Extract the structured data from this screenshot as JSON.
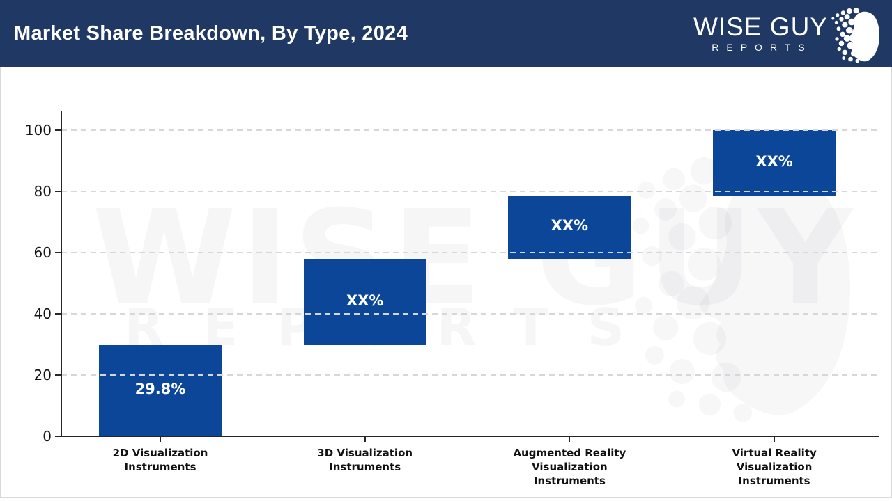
{
  "header": {
    "title": "Market Share Breakdown, By Type, 2024",
    "bg_color": "#203864",
    "logo": {
      "line1": "WISE GUY",
      "line2": "REPORTS"
    }
  },
  "watermark": {
    "line1": "WISE GUY",
    "line2": "REPORTS"
  },
  "chart_data": {
    "type": "bar",
    "subtype": "waterfall",
    "title": "Market Share Breakdown, By Type, 2024",
    "categories": [
      "2D Visualization Instruments",
      "3D Visualization Instruments",
      "Augmented Reality Visualization Instruments",
      "Virtual Reality Visualization Instruments"
    ],
    "category_label_lines": [
      [
        "2D Visualization",
        "Instruments"
      ],
      [
        "3D Visualization",
        "Instruments"
      ],
      [
        "Augmented Reality",
        "Visualization",
        "Instruments"
      ],
      [
        "Virtual Reality",
        "Visualization",
        "Instruments"
      ]
    ],
    "segments": [
      {
        "category": "2D Visualization Instruments",
        "start": 0,
        "end": 29.8,
        "label": "29.8%"
      },
      {
        "category": "3D Visualization Instruments",
        "start": 29.8,
        "end": 58.0,
        "label": "XX%"
      },
      {
        "category": "Augmented Reality Visualization Instruments",
        "start": 58.0,
        "end": 78.6,
        "label": "XX%"
      },
      {
        "category": "Virtual Reality Visualization Instruments",
        "start": 78.6,
        "end": 100.0,
        "label": "XX%"
      }
    ],
    "y_ticks": [
      0,
      20,
      40,
      60,
      80,
      100
    ],
    "y_tick_labels": [
      "0",
      "20",
      "40",
      "60",
      "80",
      "100"
    ],
    "ylim": [
      0,
      106
    ],
    "xlabel": "",
    "ylabel": "",
    "grid": "horizontal-dashed",
    "grid_above_bars": true,
    "legend": "none",
    "bar_color": "#0b4699",
    "bar_label_color": "#ffffff",
    "axis_color": "#262626"
  }
}
